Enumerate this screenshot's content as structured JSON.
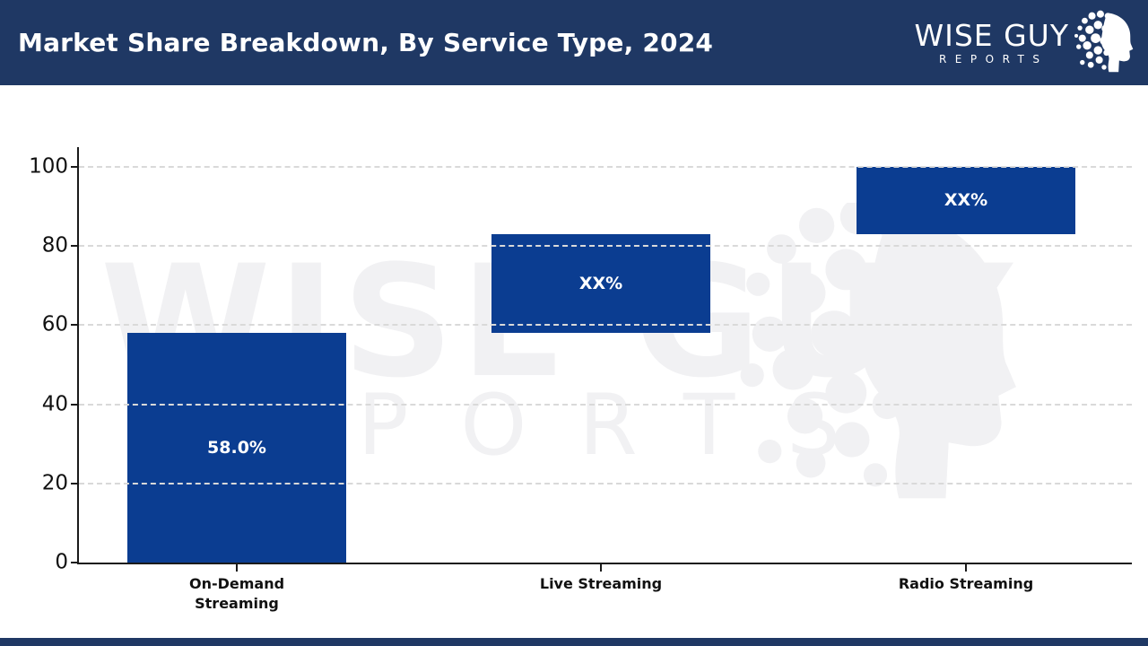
{
  "header": {
    "title": "Market Share Breakdown, By Service Type, 2024",
    "background_color": "#1f3864",
    "logo": {
      "wordmark": "WISE GUY",
      "subtitle": "REPORTS"
    }
  },
  "watermark": {
    "wordmark": "WISE GUY",
    "subtitle": "REPORTS"
  },
  "chart_data": {
    "type": "bar",
    "subtype": "waterfall",
    "title": "Market Share Breakdown, By Service Type, 2024",
    "categories": [
      "On-Demand\nStreaming",
      "Live Streaming",
      "Radio Streaming"
    ],
    "segments": [
      {
        "category": "On-Demand Streaming",
        "start": 0,
        "end": 58,
        "label": "58.0%"
      },
      {
        "category": "Live Streaming",
        "start": 58,
        "end": 83,
        "label": "XX%"
      },
      {
        "category": "Radio Streaming",
        "start": 83,
        "end": 100,
        "label": "XX%"
      }
    ],
    "xlabel": "",
    "ylabel": "",
    "ylim": [
      0,
      100
    ],
    "yticks": [
      0,
      20,
      40,
      60,
      80,
      100
    ],
    "grid": true,
    "grid_style": "dashed horizontal, drawn above bars",
    "legend": "none",
    "bar_color": "#0b3d91",
    "bar_label_color": "#ffffff",
    "grid_color": "#d9d9d9",
    "axis_color": "#1a1a1a",
    "tick_label_color": "#111111"
  },
  "footer": {
    "background_color": "#1f3864"
  }
}
